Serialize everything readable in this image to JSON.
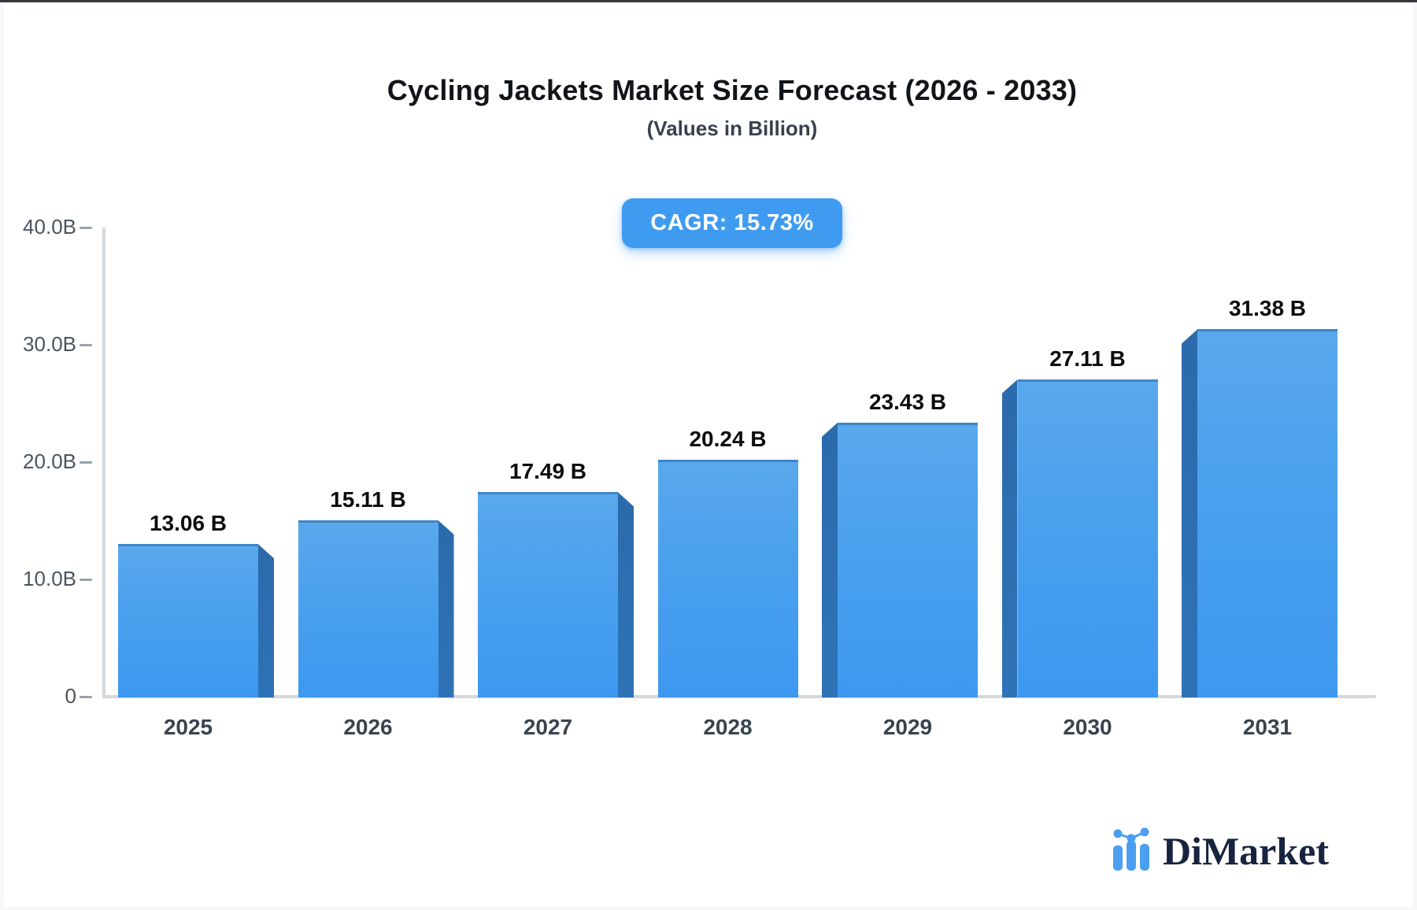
{
  "header": {
    "title": "Cycling Jackets Market Size Forecast (2026 - 2033)",
    "subtitle": "(Values in Billion)",
    "cagr_label": "CAGR: 15.73%",
    "badge_color": "#3f9bf0"
  },
  "chart_data": {
    "type": "bar",
    "title": "Cycling Jackets Market Size Forecast (2026 - 2033)",
    "subtitle": "(Values in Billion)",
    "unit": "Billion",
    "categories": [
      "2025",
      "2026",
      "2027",
      "2028",
      "2029",
      "2030",
      "2031"
    ],
    "values": [
      13.06,
      15.11,
      17.49,
      20.24,
      23.43,
      27.11,
      31.38
    ],
    "bar_labels": [
      "13.06 B",
      "15.11 B",
      "17.49 B",
      "20.24 B",
      "23.43 B",
      "27.11 B",
      "31.38 B"
    ],
    "y_ticks": [
      {
        "value": 0,
        "label": "0"
      },
      {
        "value": 10,
        "label": "10.0B"
      },
      {
        "value": 20,
        "label": "20.0B"
      },
      {
        "value": 30,
        "label": "30.0B"
      },
      {
        "value": 40,
        "label": "40.0B"
      }
    ],
    "ylim": [
      0,
      40
    ],
    "grid": false,
    "legend": false,
    "cagr": "15.73%",
    "bar_color_top": "#59a8eb",
    "bar_color_bottom": "#3d98f0",
    "bar_side_color": "#2e73b6",
    "bar_top_edge_color": "#3e85c9",
    "axis_color": "#d6dade"
  },
  "footer": {
    "logo_text": "DiMarket",
    "logo_color": "#18243f",
    "logo_icon": "bar-chart-dots-icon",
    "logo_icon_color": "#4b9ff0"
  }
}
